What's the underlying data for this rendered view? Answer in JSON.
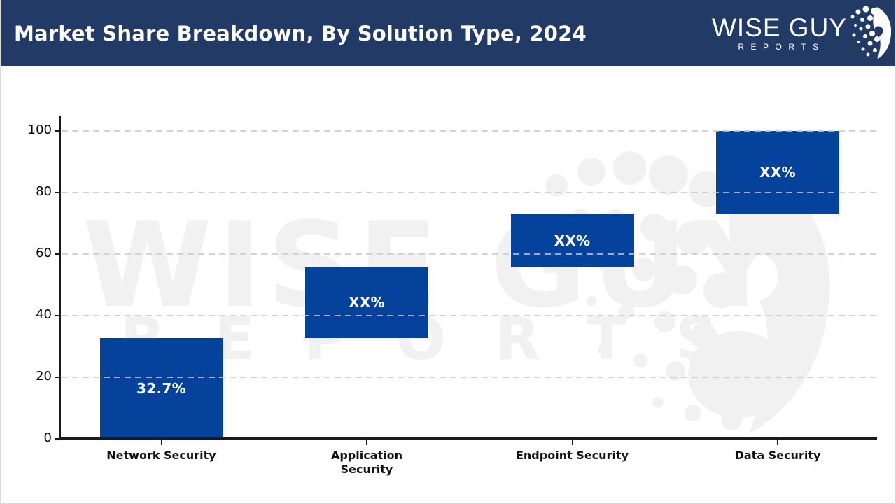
{
  "header": {
    "title": "Market Share Breakdown, By Solution Type, 2024",
    "logo": {
      "name": "WISE GUY",
      "sub": "REPORTS"
    }
  },
  "watermark": {
    "big_text": "WISE GUY",
    "sub_text": "REPORTS"
  },
  "chart_data": {
    "type": "bar",
    "variant": "waterfall",
    "title": "Market Share Breakdown, By Solution Type, 2024",
    "categories": [
      "Network Security",
      "Application\nSecurity",
      "Endpoint Security",
      "Data Security"
    ],
    "segments": [
      {
        "category": "Network Security",
        "start": 0,
        "end": 32.7,
        "value": 32.7,
        "label": "32.7%"
      },
      {
        "category": "Application Security",
        "start": 32.7,
        "end": 55.5,
        "value": 22.8,
        "label": "XX%"
      },
      {
        "category": "Endpoint Security",
        "start": 55.5,
        "end": 73.0,
        "value": 17.5,
        "label": "XX%"
      },
      {
        "category": "Data Security",
        "start": 73.0,
        "end": 100.0,
        "value": 27.0,
        "label": "XX%"
      }
    ],
    "xlabel": "",
    "ylabel": "",
    "ylim": [
      0,
      100
    ],
    "yticks": [
      0,
      20,
      40,
      60,
      80,
      100
    ],
    "grid": "horizontal-dashed",
    "legend": "none",
    "bar_color": "#05429c",
    "bar_label_color": "#ffffff"
  },
  "colors": {
    "header_bg": "#213a66",
    "bar": "#05429c",
    "axis": "#1a1a1a",
    "gridline": "#c9c9c9",
    "watermark": "#f1f1f1",
    "frame_border": "#d9d9d9"
  }
}
